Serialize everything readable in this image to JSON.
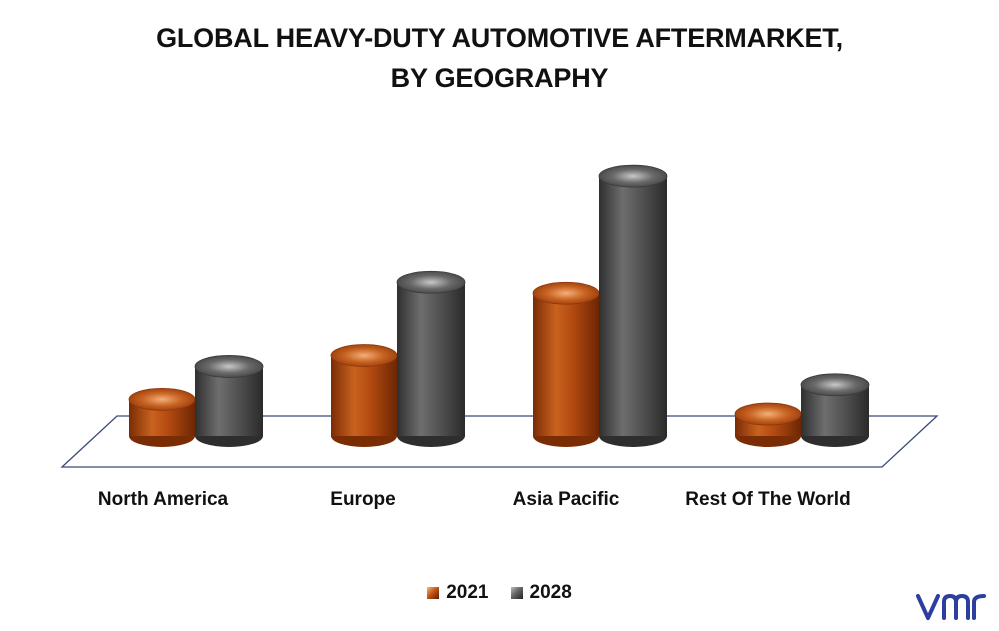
{
  "title_line1": "GLOBAL HEAVY-DUTY AUTOMOTIVE AFTERMARKET,",
  "title_line2": "BY GEOGRAPHY",
  "colors": {
    "2021": "#b3480f",
    "2028": "#4d4d4d",
    "floor_edge": "#3a4a7a",
    "logo": "#2c3e9e"
  },
  "logo_icon": "vmr-logo",
  "chart_data": {
    "type": "bar",
    "title": "GLOBAL HEAVY-DUTY AUTOMOTIVE AFTERMARKET, BY GEOGRAPHY",
    "categories": [
      "North America",
      "Europe",
      "Asia Pacific",
      "Rest Of The World"
    ],
    "series": [
      {
        "name": "2021",
        "values": [
          1.0,
          2.2,
          3.9,
          0.6
        ]
      },
      {
        "name": "2028",
        "values": [
          1.9,
          4.2,
          7.1,
          1.4
        ]
      }
    ],
    "ylim": [
      0,
      7.5
    ],
    "grid": false,
    "legend": "bottom"
  }
}
